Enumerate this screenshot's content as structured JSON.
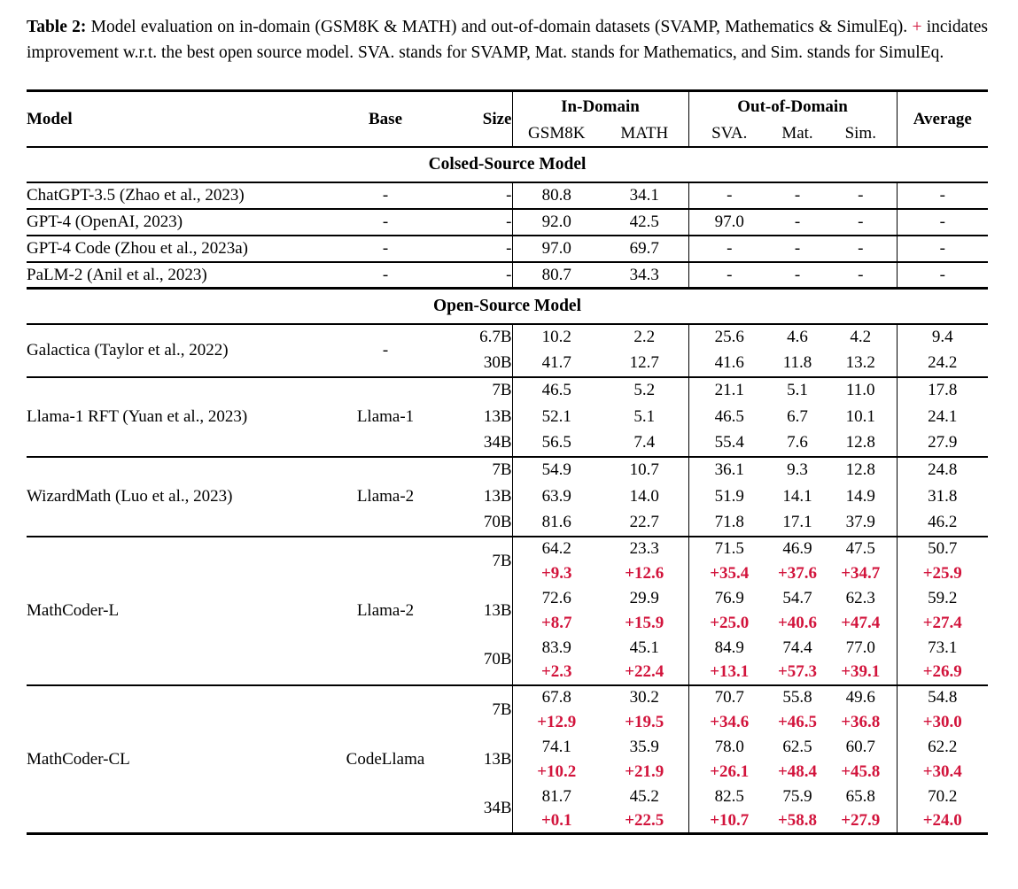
{
  "caption": {
    "label": "Table 2:",
    "text1": "Model evaluation on in-domain (GSM8K & MATH) and out-of-domain datasets (SVAMP, Mathematics & SimulEq). ",
    "plus": "+",
    "text2": " incidates improvement w.r.t. the best open source model. SVA. stands for SVAMP, Mat. stands for Mathematics, and Sim. stands for SimulEq."
  },
  "colors": {
    "accent_red": "#d2143c"
  },
  "header": {
    "model": "Model",
    "base": "Base",
    "size": "Size",
    "in_domain": "In-Domain",
    "out_of_domain": "Out-of-Domain",
    "average": "Average",
    "sub": [
      "GSM8K",
      "MATH",
      "SVA.",
      "Mat.",
      "Sim."
    ]
  },
  "sections": [
    {
      "label": "Colsed-Source Model",
      "groups": [
        {
          "model": "ChatGPT-3.5 (Zhao et al., 2023)",
          "base": "-",
          "rows": [
            {
              "size": "-",
              "values": [
                "80.8",
                "34.1",
                "-",
                "-",
                "-",
                "-"
              ]
            }
          ]
        },
        {
          "model": "GPT-4 (OpenAI, 2023)",
          "base": "-",
          "rows": [
            {
              "size": "-",
              "values": [
                "92.0",
                "42.5",
                "97.0",
                "-",
                "-",
                "-"
              ]
            }
          ]
        },
        {
          "model": "GPT-4 Code (Zhou et al., 2023a)",
          "base": "-",
          "rows": [
            {
              "size": "-",
              "values": [
                "97.0",
                "69.7",
                "-",
                "-",
                "-",
                "-"
              ]
            }
          ]
        },
        {
          "model": "PaLM-2 (Anil et al., 2023)",
          "base": "-",
          "rows": [
            {
              "size": "-",
              "values": [
                "80.7",
                "34.3",
                "-",
                "-",
                "-",
                "-"
              ]
            }
          ]
        }
      ]
    },
    {
      "label": "Open-Source Model",
      "groups": [
        {
          "model": "Galactica (Taylor et al., 2022)",
          "base": "-",
          "rows": [
            {
              "size": "6.7B",
              "values": [
                "10.2",
                "2.2",
                "25.6",
                "4.6",
                "4.2",
                "9.4"
              ]
            },
            {
              "size": "30B",
              "values": [
                "41.7",
                "12.7",
                "41.6",
                "11.8",
                "13.2",
                "24.2"
              ]
            }
          ]
        },
        {
          "model": "Llama-1 RFT (Yuan et al., 2023)",
          "base": "Llama-1",
          "rows": [
            {
              "size": "7B",
              "values": [
                "46.5",
                "5.2",
                "21.1",
                "5.1",
                "11.0",
                "17.8"
              ]
            },
            {
              "size": "13B",
              "values": [
                "52.1",
                "5.1",
                "46.5",
                "6.7",
                "10.1",
                "24.1"
              ]
            },
            {
              "size": "34B",
              "values": [
                "56.5",
                "7.4",
                "55.4",
                "7.6",
                "12.8",
                "27.9"
              ]
            }
          ]
        },
        {
          "model": "WizardMath (Luo et al., 2023)",
          "base": "Llama-2",
          "rows": [
            {
              "size": "7B",
              "values": [
                "54.9",
                "10.7",
                "36.1",
                "9.3",
                "12.8",
                "24.8"
              ]
            },
            {
              "size": "13B",
              "values": [
                "63.9",
                "14.0",
                "51.9",
                "14.1",
                "14.9",
                "31.8"
              ]
            },
            {
              "size": "70B",
              "values": [
                "81.6",
                "22.7",
                "71.8",
                "17.1",
                "37.9",
                "46.2"
              ]
            }
          ]
        },
        {
          "model": "MathCoder-L",
          "base": "Llama-2",
          "rows": [
            {
              "size": "7B",
              "values": [
                "64.2",
                "23.3",
                "71.5",
                "46.9",
                "47.5",
                "50.7"
              ],
              "deltas": [
                "+9.3",
                "+12.6",
                "+35.4",
                "+37.6",
                "+34.7",
                "+25.9"
              ]
            },
            {
              "size": "13B",
              "values": [
                "72.6",
                "29.9",
                "76.9",
                "54.7",
                "62.3",
                "59.2"
              ],
              "deltas": [
                "+8.7",
                "+15.9",
                "+25.0",
                "+40.6",
                "+47.4",
                "+27.4"
              ]
            },
            {
              "size": "70B",
              "values": [
                "83.9",
                "45.1",
                "84.9",
                "74.4",
                "77.0",
                "73.1"
              ],
              "deltas": [
                "+2.3",
                "+22.4",
                "+13.1",
                "+57.3",
                "+39.1",
                "+26.9"
              ]
            }
          ]
        },
        {
          "model": "MathCoder-CL",
          "base": "CodeLlama",
          "rows": [
            {
              "size": "7B",
              "values": [
                "67.8",
                "30.2",
                "70.7",
                "55.8",
                "49.6",
                "54.8"
              ],
              "deltas": [
                "+12.9",
                "+19.5",
                "+34.6",
                "+46.5",
                "+36.8",
                "+30.0"
              ]
            },
            {
              "size": "13B",
              "values": [
                "74.1",
                "35.9",
                "78.0",
                "62.5",
                "60.7",
                "62.2"
              ],
              "deltas": [
                "+10.2",
                "+21.9",
                "+26.1",
                "+48.4",
                "+45.8",
                "+30.4"
              ]
            },
            {
              "size": "34B",
              "values": [
                "81.7",
                "45.2",
                "82.5",
                "75.9",
                "65.8",
                "70.2"
              ],
              "deltas": [
                "+0.1",
                "+22.5",
                "+10.7",
                "+58.8",
                "+27.9",
                "+24.0"
              ]
            }
          ]
        }
      ]
    }
  ]
}
